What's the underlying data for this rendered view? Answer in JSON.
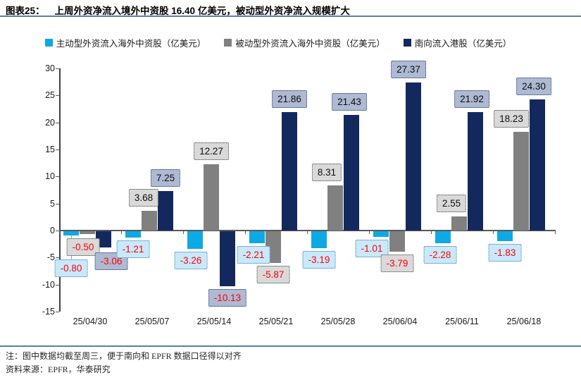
{
  "header": {
    "tag": "图表25：",
    "title": "上周外资净流入境外中资股 16.40 亿美元，被动型外资净流入规模扩大"
  },
  "chart_data": {
    "type": "bar",
    "title": "上周外资净流入境外中资股 16.40 亿美元，被动型外资净流入规模扩大",
    "categories": [
      "25/04/30",
      "25/05/07",
      "25/05/14",
      "25/05/21",
      "25/05/28",
      "25/06/04",
      "25/06/11",
      "25/06/18"
    ],
    "series": [
      {
        "name": "主动型外资流入海外中资股（亿美元）",
        "color": "#0da9e5",
        "values": [
          -0.8,
          -1.21,
          -3.26,
          -2.21,
          -3.19,
          -1.01,
          -2.28,
          -1.83
        ]
      },
      {
        "name": "被动型外资流入海外中资股（亿美元）",
        "color": "#808080",
        "values": [
          -0.5,
          3.68,
          12.27,
          -5.87,
          8.31,
          -3.79,
          2.55,
          18.23
        ]
      },
      {
        "name": "南向流入港股（亿美元）",
        "color": "#13295e",
        "values": [
          -3.06,
          7.25,
          -10.13,
          21.86,
          21.43,
          27.37,
          21.92,
          24.3
        ]
      }
    ],
    "xlabel": "",
    "ylabel": "",
    "ylim": [
      -15,
      30
    ],
    "yticks": [
      30,
      25,
      20,
      15,
      10,
      5,
      0,
      -5,
      -10,
      -15
    ],
    "grid": false,
    "legend_position": "top",
    "data_label_boxes": true,
    "label_text_colors": {
      "positive": "#0d0d0d",
      "negative": "#ff0000"
    },
    "accent_rule_color": "#5b7cad"
  },
  "footer": {
    "note": "注：图中数据均截至周三，便于南向和 EPFR 数据口径得以对齐",
    "source": "资料来源：EPFR，华泰研究"
  }
}
